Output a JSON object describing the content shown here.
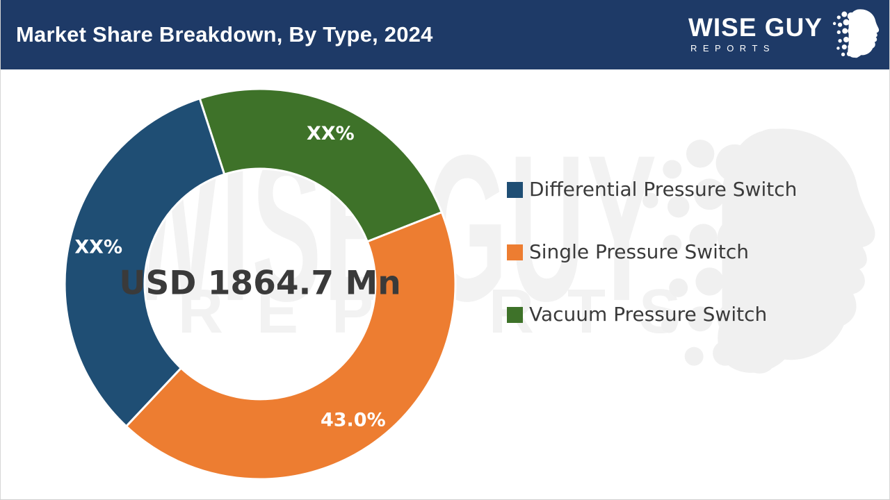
{
  "header": {
    "title": "Market Share Breakdown, By Type, 2024",
    "logo": {
      "line1": "WISE GUY",
      "line2": "REPORTS"
    }
  },
  "watermark": {
    "line1": "WISE GUY",
    "line2": "REPORTS"
  },
  "colors": {
    "header_bg": "#1e3a67",
    "differential_blue": "#1F4E74",
    "single_orange": "#ED7D31",
    "vacuum_green": "#3E7229",
    "text_dark": "#3a3a3a",
    "slice_gap_white": "#ffffff"
  },
  "chart_data": {
    "type": "pie",
    "subtype": "donut",
    "title": "Market Share Breakdown, By Type, 2024",
    "center_label": "USD 1864.7 Mn",
    "legend_position": "right",
    "start_angle_clockwise_from_top_deg": -18,
    "slices": [
      {
        "name": "Vacuum Pressure Switch",
        "label_shown": "XX%",
        "share_pct": 24,
        "color": "#3E7229"
      },
      {
        "name": "Single Pressure Switch",
        "label_shown": "43.0%",
        "share_pct": 43,
        "color": "#ED7D31"
      },
      {
        "name": "Differential Pressure Switch",
        "label_shown": "XX%",
        "share_pct": 33,
        "color": "#1F4E74"
      }
    ]
  },
  "legend": {
    "items": [
      {
        "label": "Differential Pressure Switch",
        "color": "#1F4E74"
      },
      {
        "label": "Single Pressure Switch",
        "color": "#ED7D31"
      },
      {
        "label": "Vacuum Pressure Switch",
        "color": "#3E7229"
      }
    ]
  }
}
